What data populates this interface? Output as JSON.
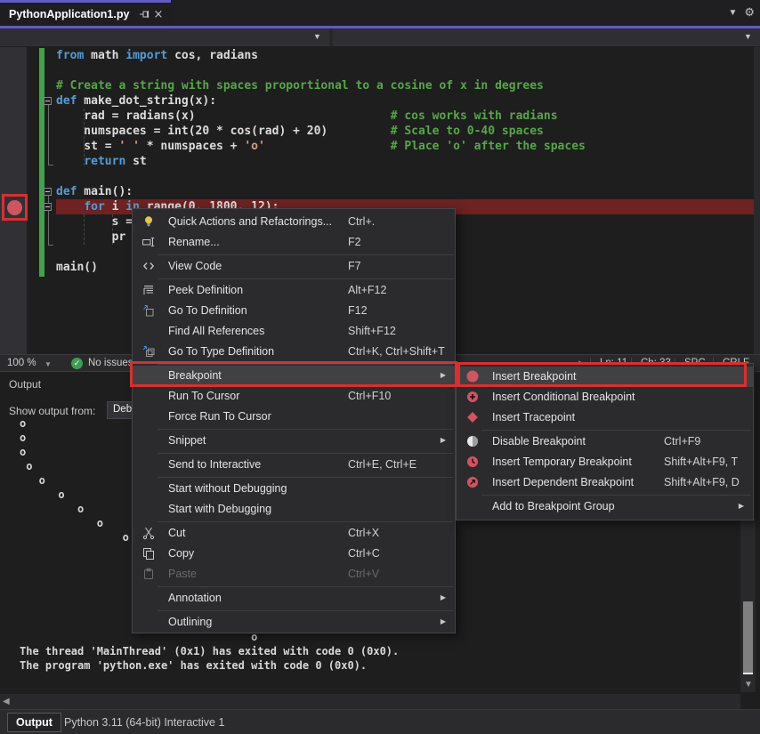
{
  "colors": {
    "accent_purple": "#6159c4",
    "annotation_red": "#d83030",
    "breakpoint_red": "#cf5560",
    "breakpoint_line_bg": "#6e2222",
    "change_bar_green": "#44a04a",
    "keyword_blue": "#569cd6",
    "comment_green": "#57a64a",
    "string_orange": "#d69d85"
  },
  "doc_tab": {
    "title": "PythonApplication1.py",
    "close_glyph": "×"
  },
  "code": {
    "lines": [
      {
        "segs": [
          [
            "kw",
            "from"
          ],
          [
            "tx",
            " math "
          ],
          [
            "kw",
            "import"
          ],
          [
            "tx",
            " cos, radians"
          ]
        ]
      },
      {
        "segs": []
      },
      {
        "segs": [
          [
            "cm",
            "# Create a string with spaces proportional to a cosine of x in degrees"
          ]
        ]
      },
      {
        "fold": true,
        "segs": [
          [
            "kw",
            "def"
          ],
          [
            "tx",
            " make_dot_string(x):"
          ]
        ]
      },
      {
        "segs": [
          [
            "tx",
            "    rad = radians(x)                            "
          ],
          [
            "cm",
            "# cos works with radians"
          ]
        ]
      },
      {
        "segs": [
          [
            "tx",
            "    numspaces = int(20 * cos(rad) + 20)         "
          ],
          [
            "cm",
            "# Scale to 0-40 spaces"
          ]
        ]
      },
      {
        "segs": [
          [
            "tx",
            "    st = "
          ],
          [
            "st",
            "' '"
          ],
          [
            "tx",
            " * numspaces + "
          ],
          [
            "st",
            "'o'"
          ],
          [
            "tx",
            "                  "
          ],
          [
            "cm",
            "# Place 'o' after the spaces"
          ]
        ]
      },
      {
        "segs": [
          [
            "tx",
            "    "
          ],
          [
            "kw",
            "return"
          ],
          [
            "tx",
            " st"
          ]
        ]
      },
      {
        "segs": []
      },
      {
        "fold": true,
        "segs": [
          [
            "kw",
            "def"
          ],
          [
            "tx",
            " main():"
          ]
        ]
      },
      {
        "fold": true,
        "bp": true,
        "segs": [
          [
            "tx",
            "    "
          ],
          [
            "kw",
            "for"
          ],
          [
            "tx",
            " i "
          ],
          [
            "kw",
            "in"
          ],
          [
            "tx",
            " range(0, 1800, 12):"
          ]
        ]
      },
      {
        "segs": [
          [
            "tx",
            "        s ="
          ]
        ]
      },
      {
        "segs": [
          [
            "tx",
            "        pr"
          ]
        ]
      },
      {
        "segs": []
      },
      {
        "segs": [
          [
            "tx",
            "main()"
          ]
        ]
      }
    ]
  },
  "editor_status": {
    "zoom_level": "100 %",
    "health": "No issues found",
    "line": "Ln: 11",
    "column": "Ch: 33",
    "spaces": "SPC",
    "line_ending": "CRLF"
  },
  "context_menu": {
    "items": [
      {
        "icon": "lightbulb",
        "label": "Quick Actions and Refactorings...",
        "shortcut": "Ctrl+."
      },
      {
        "icon": "rename",
        "label": "Rename...",
        "shortcut": "F2"
      },
      {
        "type": "separator"
      },
      {
        "icon": "viewcode",
        "label": "View Code",
        "shortcut": "F7"
      },
      {
        "type": "separator"
      },
      {
        "icon": "peek",
        "label": "Peek Definition",
        "shortcut": "Alt+F12"
      },
      {
        "icon": "godef",
        "label": "Go To Definition",
        "shortcut": "F12"
      },
      {
        "label": "Find All References",
        "shortcut": "Shift+F12"
      },
      {
        "icon": "gotype",
        "label": "Go To Type Definition",
        "shortcut": "Ctrl+K, Ctrl+Shift+T"
      },
      {
        "type": "separator"
      },
      {
        "label": "Breakpoint",
        "submenu": true,
        "highlighted": true
      },
      {
        "label": "Run To Cursor",
        "shortcut": "Ctrl+F10"
      },
      {
        "label": "Force Run To Cursor"
      },
      {
        "type": "separator"
      },
      {
        "label": "Snippet",
        "submenu": true
      },
      {
        "type": "separator"
      },
      {
        "label": "Send to Interactive",
        "shortcut": "Ctrl+E, Ctrl+E"
      },
      {
        "type": "separator"
      },
      {
        "label": "Start without Debugging"
      },
      {
        "label": "Start with Debugging"
      },
      {
        "type": "separator"
      },
      {
        "icon": "cut",
        "label": "Cut",
        "shortcut": "Ctrl+X"
      },
      {
        "icon": "copy",
        "label": "Copy",
        "shortcut": "Ctrl+C"
      },
      {
        "icon": "paste",
        "label": "Paste",
        "shortcut": "Ctrl+V",
        "disabled": true
      },
      {
        "type": "separator"
      },
      {
        "label": "Annotation",
        "submenu": true
      },
      {
        "type": "separator"
      },
      {
        "label": "Outlining",
        "submenu": true
      }
    ]
  },
  "breakpoint_submenu": {
    "items": [
      {
        "icon": "bp",
        "label": "Insert Breakpoint",
        "highlighted": true
      },
      {
        "icon": "bp-cond",
        "label": "Insert Conditional Breakpoint"
      },
      {
        "icon": "bp-trace",
        "label": "Insert Tracepoint"
      },
      {
        "type": "separator"
      },
      {
        "icon": "bp-disable",
        "label": "Disable Breakpoint",
        "shortcut": "Ctrl+F9"
      },
      {
        "icon": "bp-temp",
        "label": "Insert Temporary Breakpoint",
        "shortcut": "Shift+Alt+F9, T"
      },
      {
        "icon": "bp-dep",
        "label": "Insert Dependent Breakpoint",
        "shortcut": "Shift+Alt+F9, D"
      },
      {
        "type": "separator"
      },
      {
        "label": "Add to Breakpoint Group",
        "submenu": true
      }
    ]
  },
  "output_panel": {
    "title": "Output",
    "show_output_from_label": "Show output from:",
    "show_output_from_value": "Debug",
    "console_lines": [
      "o",
      "o",
      "o",
      " o",
      "   o",
      "      o",
      "         o",
      "            o",
      "                o",
      "                   o",
      "                      o",
      "                         o",
      "                            o",
      "                               o",
      "                                  o",
      "                                    o",
      "The thread 'MainThread' (0x1) has exited with code 0 (0x0).",
      "The program 'python.exe' has exited with code 0 (0x0)."
    ]
  },
  "bottom_tabs": {
    "tabs": [
      {
        "label": "Output",
        "active": true
      },
      {
        "label": "Python 3.11 (64-bit) Interactive 1",
        "active": false
      }
    ]
  }
}
